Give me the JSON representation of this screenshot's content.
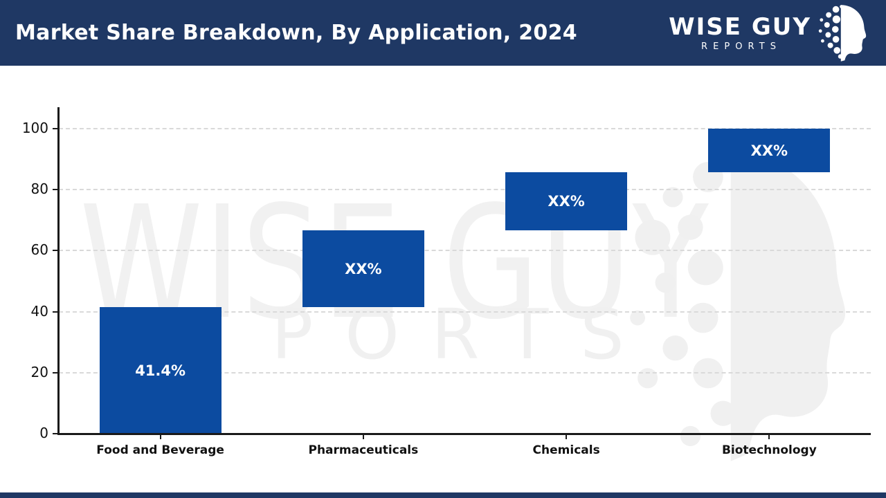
{
  "header": {
    "title": "Market Share Breakdown, By Application, 2024",
    "brand": {
      "line1": "WISE GUY",
      "line2": "REPORTS"
    }
  },
  "watermark": {
    "line1": "WISE GUY",
    "line2": "PORTS"
  },
  "chart_data": {
    "type": "bar",
    "variant": "waterfall",
    "title": "Market Share Breakdown, By Application, 2024",
    "categories": [
      "Food and Beverage",
      "Pharmaceuticals",
      "Chemicals",
      "Biotechnology"
    ],
    "segments": [
      {
        "category": "Food and Beverage",
        "start": 0,
        "end": 41.4,
        "label": "41.4%"
      },
      {
        "category": "Pharmaceuticals",
        "start": 41.4,
        "end": 66.7,
        "label": "XX%"
      },
      {
        "category": "Chemicals",
        "start": 66.7,
        "end": 85.7,
        "label": "XX%"
      },
      {
        "category": "Biotechnology",
        "start": 85.7,
        "end": 100,
        "label": "XX%"
      }
    ],
    "ylim": [
      0,
      100
    ],
    "yticks": [
      0,
      20,
      40,
      60,
      80,
      100
    ],
    "grid": "horizontal-dashed",
    "legend": "none",
    "xlabel": "",
    "ylabel": ""
  },
  "colors": {
    "header_bg": "#1f3864",
    "footer_bg": "#1f3864",
    "bar": "#0c4ba0",
    "grid": "#d9d9d9",
    "axis": "#1a1a1a",
    "bar_label": "#ffffff",
    "watermark": "#f1f1f1"
  }
}
